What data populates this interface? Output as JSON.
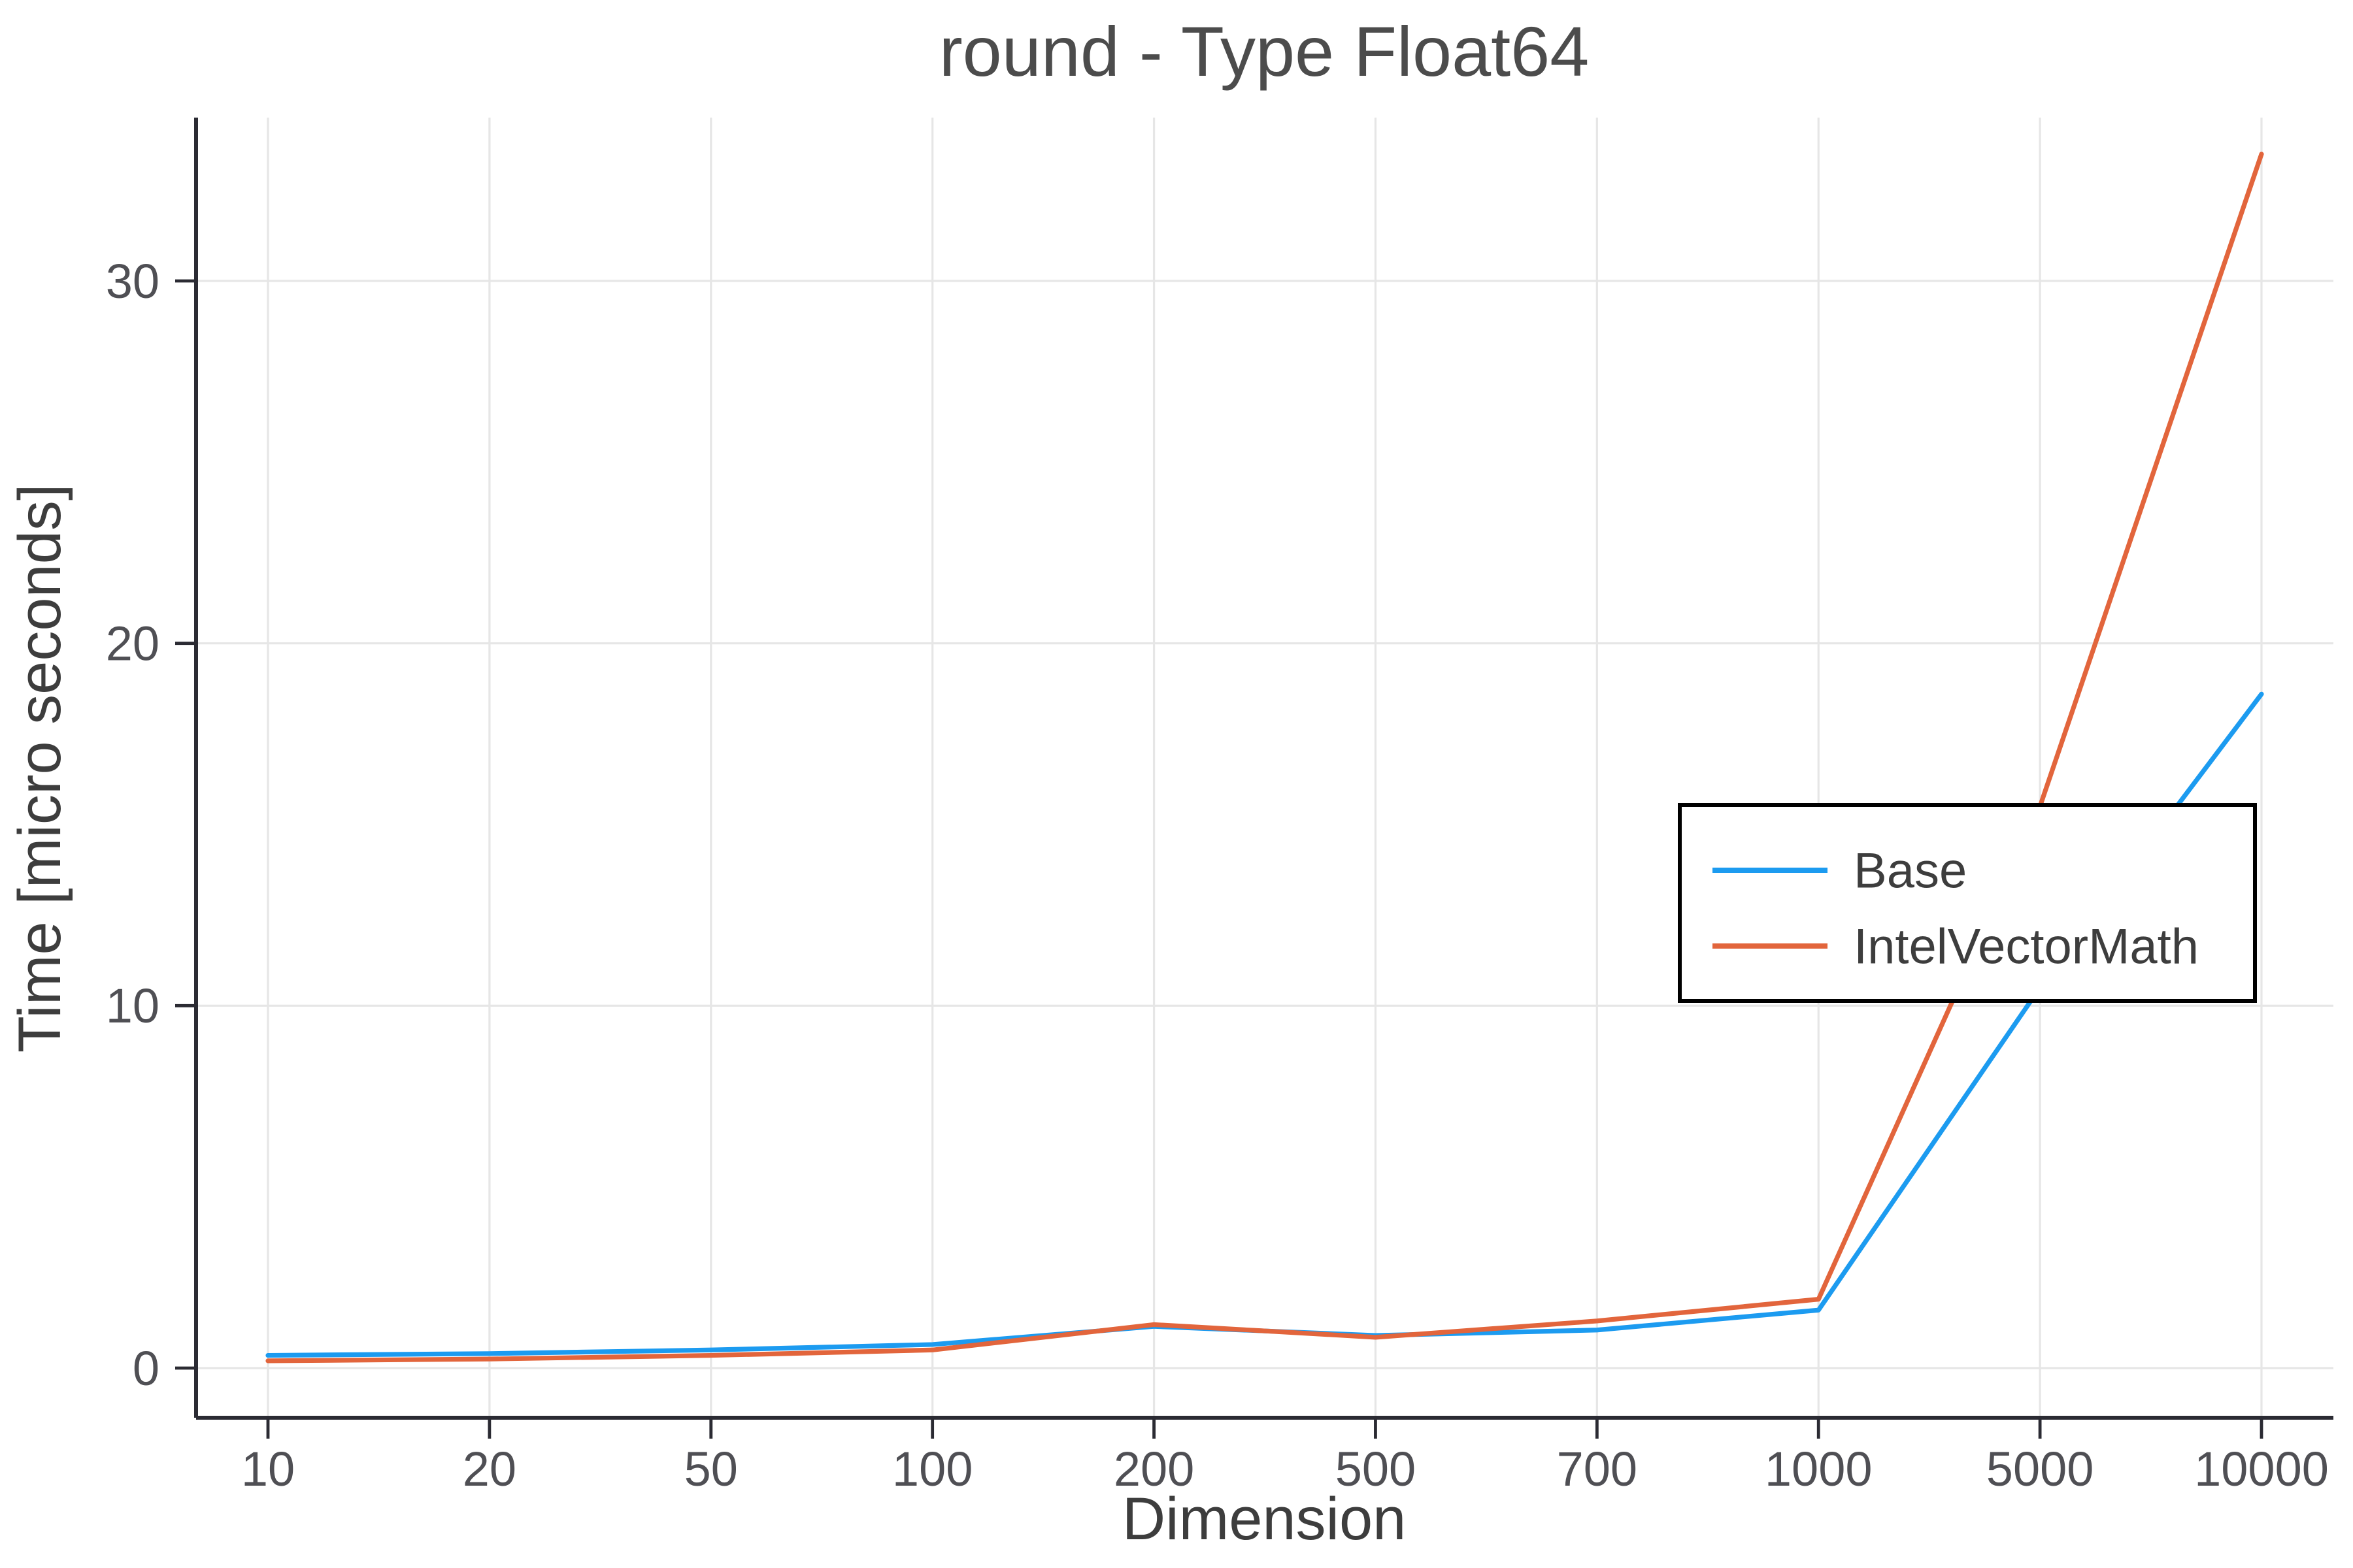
{
  "chart_data": {
    "type": "line",
    "title": "round - Type Float64",
    "xlabel": "Dimension",
    "ylabel": "Time [micro seconds]",
    "categories": [
      "10",
      "20",
      "50",
      "100",
      "200",
      "500",
      "700",
      "1000",
      "5000",
      "10000"
    ],
    "series": [
      {
        "name": "Base",
        "color": "#1c9bf0",
        "values": [
          0.35,
          0.4,
          0.5,
          0.65,
          1.15,
          0.9,
          1.05,
          1.6,
          10.5,
          18.6
        ]
      },
      {
        "name": "IntelVectorMath",
        "color": "#e2653c",
        "values": [
          0.2,
          0.25,
          0.35,
          0.5,
          1.2,
          0.85,
          1.3,
          1.9,
          15.5,
          33.5
        ]
      }
    ],
    "y_ticks": [
      0,
      10,
      20,
      30
    ],
    "ylim": [
      -1.4,
      34.5
    ],
    "x_scale": "categorical",
    "grid": true,
    "legend_position": "right-center"
  }
}
